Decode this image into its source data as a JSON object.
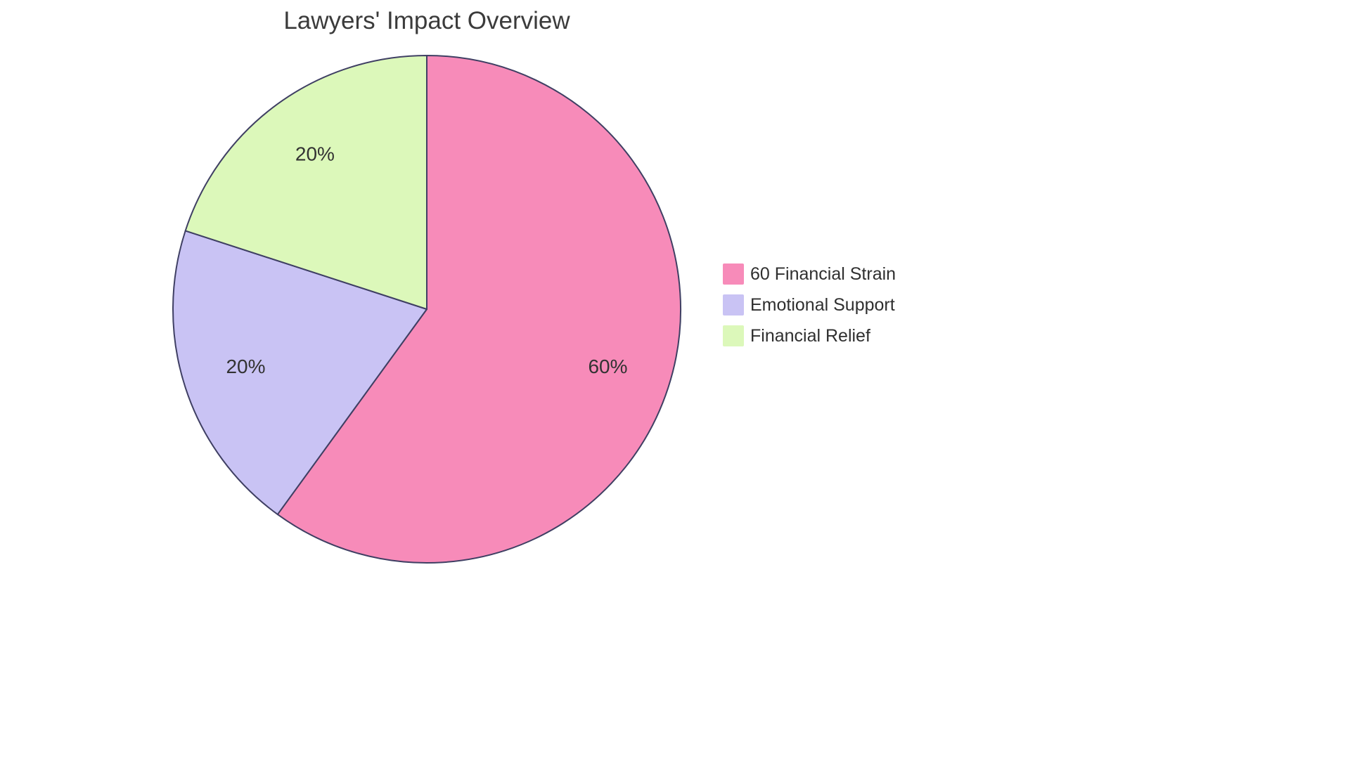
{
  "page": {
    "background_color": "#ffffff"
  },
  "chart_data": {
    "type": "pie",
    "title": "Lawyers' Impact Overview",
    "title_color": "#3b3b3b",
    "slices": [
      {
        "label": "60 Financial Strain",
        "value": 60,
        "percent_label": "60%",
        "color": "#F78BB9"
      },
      {
        "label": "Emotional Support",
        "value": 20,
        "percent_label": "20%",
        "color": "#C9C3F4"
      },
      {
        "label": "Financial Relief",
        "value": 20,
        "percent_label": "20%",
        "color": "#DCF8BA"
      }
    ],
    "start_angle_deg": -90,
    "direction": "clockwise",
    "stroke_color": "#3F3F63",
    "stroke_width": 2,
    "slice_label_color": "#333333",
    "legend_position": "right",
    "legend_text_color": "#2f2f2f",
    "grid": false
  }
}
